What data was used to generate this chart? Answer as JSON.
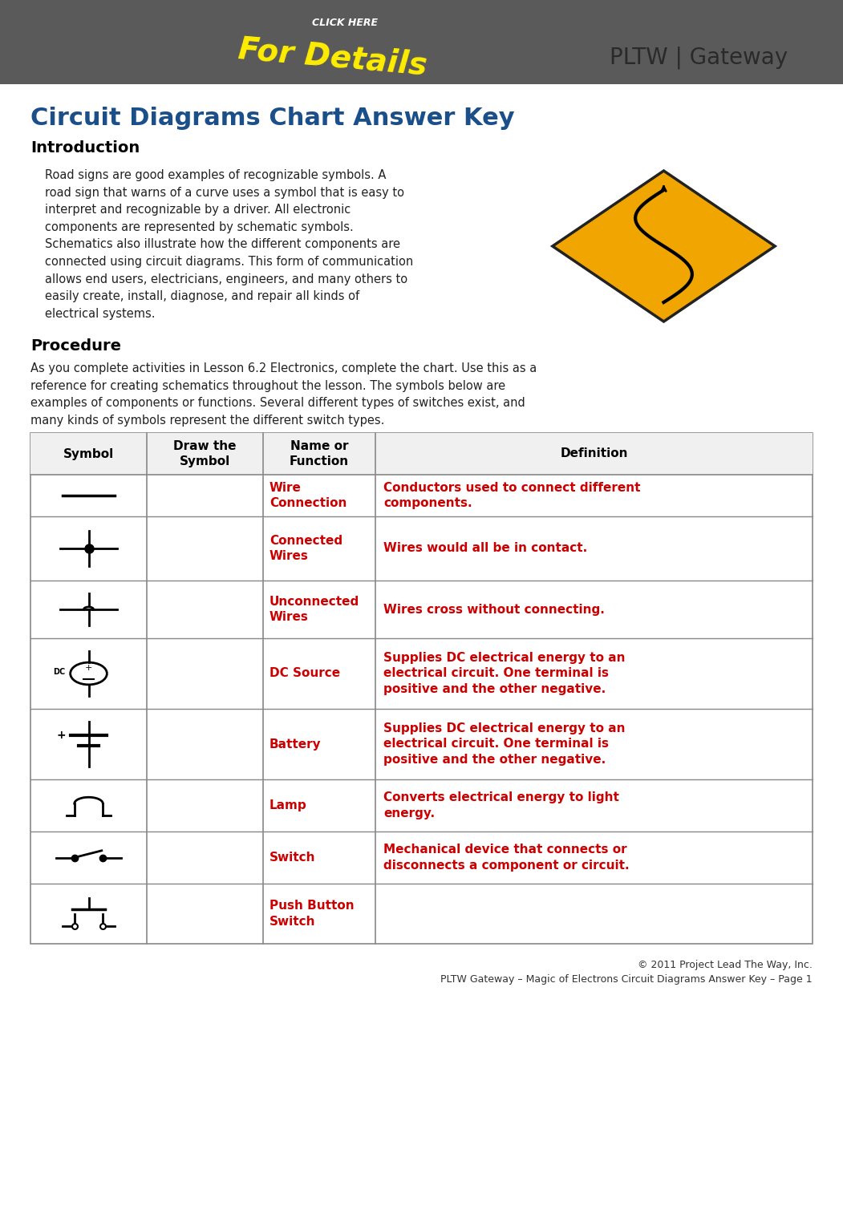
{
  "page_bg": "#ffffff",
  "header_bg": "#5a5a5a",
  "header_text_click": "CLICK HERE",
  "header_text_details": "For Details",
  "header_text_pltw": "PLTW | Gateway",
  "title": "Circuit Diagrams Chart Answer Key",
  "intro_heading": "Introduction",
  "intro_body_left": "Road signs are good examples of recognizable symbols. A\nroad sign that warns of a curve uses a symbol that is easy to\ninterpret and recognizable by a driver. All electronic\ncomponents are represented by schematic symbols.\nSchematics also illustrate how the different components are\nconnected using circuit diagrams. This form of communication\nallows end users, electricians, engineers, and many others to\neasily create, install, diagnose, and repair all kinds of\nelectrical systems.",
  "procedure_heading": "Procedure",
  "procedure_body": "As you complete activities in Lesson 6.2 Electronics, complete the chart. Use this as a\nreference for creating schematics throughout the lesson. The symbols below are\nexamples of components or functions. Several different types of switches exist, and\nmany kinds of symbols represent the different switch types.",
  "table_headers": [
    "Symbol",
    "Draw the\nSymbol",
    "Name or\nFunction",
    "Definition"
  ],
  "table_rows": [
    {
      "name": "Wire\nConnection",
      "definition": "Conductors used to connect different\ncomponents.",
      "symbol_type": "wire"
    },
    {
      "name": "Connected\nWires",
      "definition": "Wires would all be in contact.",
      "symbol_type": "connected"
    },
    {
      "name": "Unconnected\nWires",
      "definition": "Wires cross without connecting.",
      "symbol_type": "unconnected"
    },
    {
      "name": "DC Source",
      "definition": "Supplies DC electrical energy to an\nelectrical circuit. One terminal is\npositive and the other negative.",
      "symbol_type": "dc_source"
    },
    {
      "name": "Battery",
      "definition": "Supplies DC electrical energy to an\nelectrical circuit. One terminal is\npositive and the other negative.",
      "symbol_type": "battery"
    },
    {
      "name": "Lamp",
      "definition": "Converts electrical energy to light\nenergy.",
      "symbol_type": "lamp"
    },
    {
      "name": "Switch",
      "definition": "Mechanical device that connects or\ndisconnects a component or circuit.",
      "symbol_type": "switch"
    },
    {
      "name": "Push Button\nSwitch",
      "definition": "",
      "symbol_type": "push_button"
    }
  ],
  "footer_line1": "© 2011 Project Lead The Way, Inc.",
  "footer_line2": "PLTW Gateway – Magic of Electrons Circuit Diagrams Answer Key – Page 1",
  "colors": {
    "header_bg": "#5a5a5a",
    "title_blue": "#1b4f8a",
    "heading_black": "#000000",
    "body_text": "#222222",
    "red": "#cc0000",
    "table_border": "#888888",
    "header_row_bg": "#f5f5f5",
    "click_here_white": "#ffffff",
    "for_details_yellow": "#ffee00",
    "pltw_dark": "#2a2a2a",
    "symbol_black": "#000000"
  }
}
